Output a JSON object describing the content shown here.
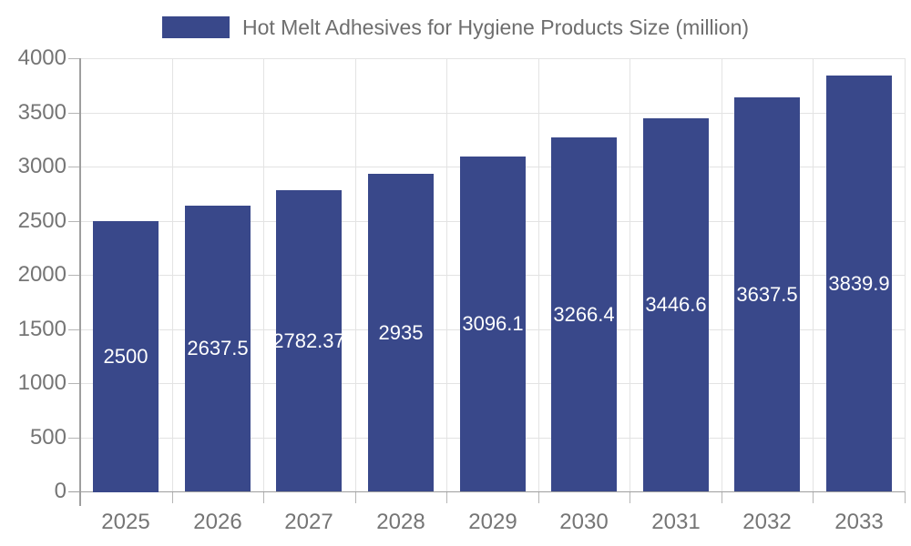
{
  "legend": {
    "label": "Hot Melt Adhesives for Hygiene Products Size (million)"
  },
  "chart_data": {
    "type": "bar",
    "title": "Hot Melt Adhesives for Hygiene Products Size (million)",
    "categories": [
      "2025",
      "2026",
      "2027",
      "2028",
      "2029",
      "2030",
      "2031",
      "2032",
      "2033"
    ],
    "values": [
      2500,
      2637.5,
      2782.37,
      2935,
      3096.1,
      3266.4,
      3446.6,
      3637.5,
      3839.9
    ],
    "bar_labels": [
      "2500",
      "2637.5",
      "2782.37",
      "2935",
      "3096.1",
      "3266.4",
      "3446.6",
      "3637.5",
      "3839.9"
    ],
    "xlabel": "",
    "ylabel": "",
    "ylim": [
      0,
      4000
    ],
    "yticks": [
      0,
      500,
      1000,
      1500,
      2000,
      2500,
      3000,
      3500,
      4000
    ],
    "grid": "on",
    "legend_position": "top",
    "colors": {
      "bar": "#39488A",
      "grid": "#e3e3e3",
      "axis": "#9e9e9e",
      "tick": "#b5b5b5",
      "axis_text": "#757575",
      "legend_text": "#6e6e6e",
      "bar_label": "#ffffff"
    }
  }
}
